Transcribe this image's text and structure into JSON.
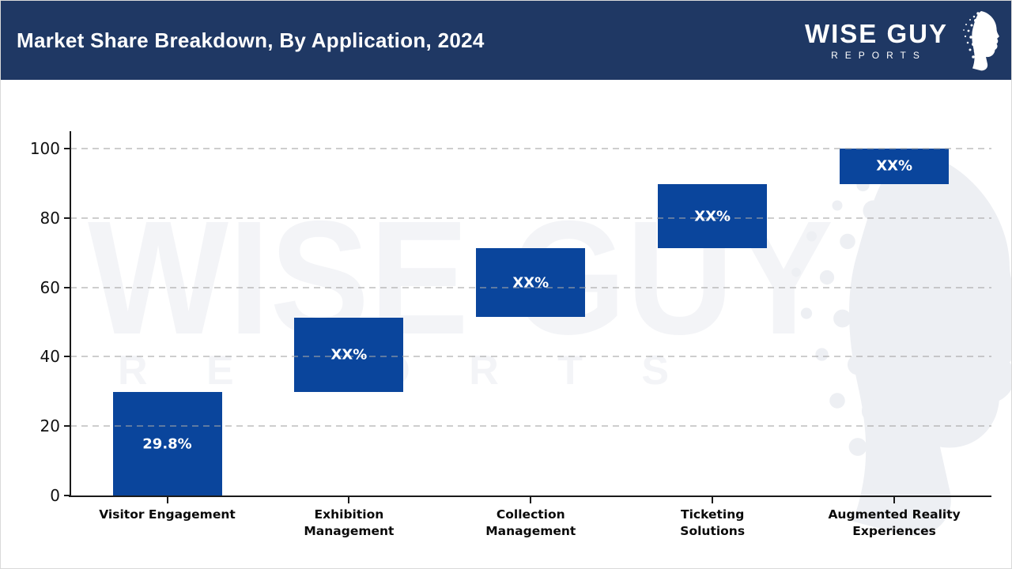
{
  "header": {
    "title": "Market Share Breakdown, By Application, 2024",
    "logo": {
      "brand": "WISE GUY",
      "sub": "REPORTS"
    }
  },
  "watermark": {
    "brand": "WISE GUY",
    "sub": "R E P O R T S"
  },
  "colors": {
    "header_bg": "#1f3864",
    "bar": "#0a459c",
    "bar_label": "#ffffff",
    "axis": "#1a1a1a",
    "grid": "#d8d8d8",
    "watermark": "#f2f3f6"
  },
  "chart_data": {
    "type": "bar",
    "subtype": "waterfall (floating segment bars)",
    "title": "Market Share Breakdown, By Application, 2024",
    "categories": [
      "Visitor Engagement",
      "Exhibition Management",
      "Collection Management",
      "Ticketing Solutions",
      "Augmented Reality Experiences"
    ],
    "tick_labels": [
      "Visitor Engagement",
      "Exhibition\nManagement",
      "Collection\nManagement",
      "Ticketing\nSolutions",
      "Augmented Reality\nExperiences"
    ],
    "segments": [
      {
        "category": "Visitor Engagement",
        "start": 0,
        "end": 29.8,
        "label": "29.8%"
      },
      {
        "category": "Exhibition Management",
        "start": 29.8,
        "end": 51.3,
        "label": "XX%"
      },
      {
        "category": "Collection Management",
        "start": 51.5,
        "end": 71.2,
        "label": "XX%"
      },
      {
        "category": "Ticketing Solutions",
        "start": 71.2,
        "end": 89.8,
        "label": "XX%"
      },
      {
        "category": "Augmented Reality Experiences",
        "start": 89.8,
        "end": 100,
        "label": "XX%"
      }
    ],
    "xlabel": "",
    "ylabel": "",
    "ylim": [
      0,
      105
    ],
    "yticks": [
      0,
      20,
      40,
      60,
      80,
      100
    ],
    "grid": "horizontal dashed, drawn above bars",
    "legend": "none"
  }
}
